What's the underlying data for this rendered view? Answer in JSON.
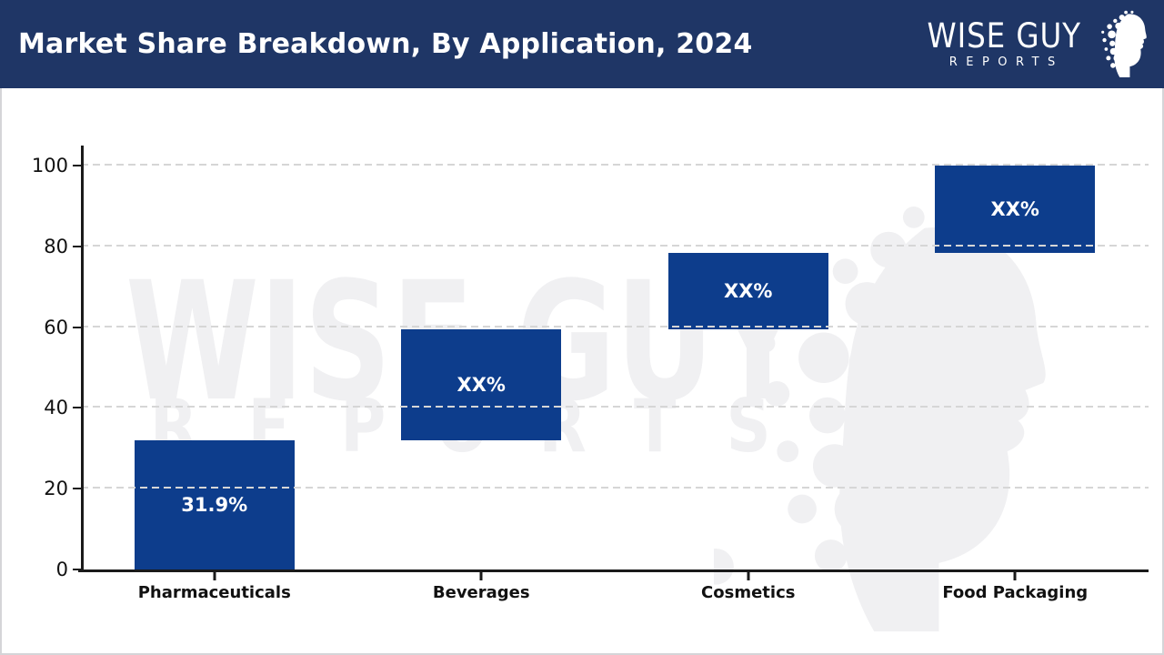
{
  "header": {
    "title": "Market Share Breakdown, By Application, 2024",
    "bg_color": "#1f3666",
    "logo": {
      "line1": "WISE GUY",
      "line2": "REPORTS"
    }
  },
  "watermark": {
    "line1": "WISE GUY",
    "line2": "REPORTS",
    "color": "#f0f0f2"
  },
  "chart_data": {
    "type": "bar",
    "subtype": "waterfall",
    "title": "Market Share Breakdown, By Application, 2024",
    "categories": [
      "Pharmaceuticals",
      "Beverages",
      "Cosmetics",
      "Food Packaging"
    ],
    "segments": [
      {
        "category": "Pharmaceuticals",
        "start": 0,
        "end": 31.9,
        "label": "31.9%"
      },
      {
        "category": "Beverages",
        "start": 31.9,
        "end": 59.5,
        "label": "XX%"
      },
      {
        "category": "Cosmetics",
        "start": 59.5,
        "end": 78.5,
        "label": "XX%"
      },
      {
        "category": "Food Packaging",
        "start": 78.5,
        "end": 100,
        "label": "XX%"
      }
    ],
    "y_ticks": [
      0,
      20,
      40,
      60,
      80,
      100
    ],
    "ylim": [
      0,
      105
    ],
    "xlabel": "",
    "ylabel": "",
    "bar_color": "#0d3d8c",
    "grid": "horizontal dashed, drawn over bars",
    "grid_color": "#d6d6d6",
    "axis_color": "#1a1a1a",
    "legend": "none",
    "bar_width_fraction": 0.6
  }
}
